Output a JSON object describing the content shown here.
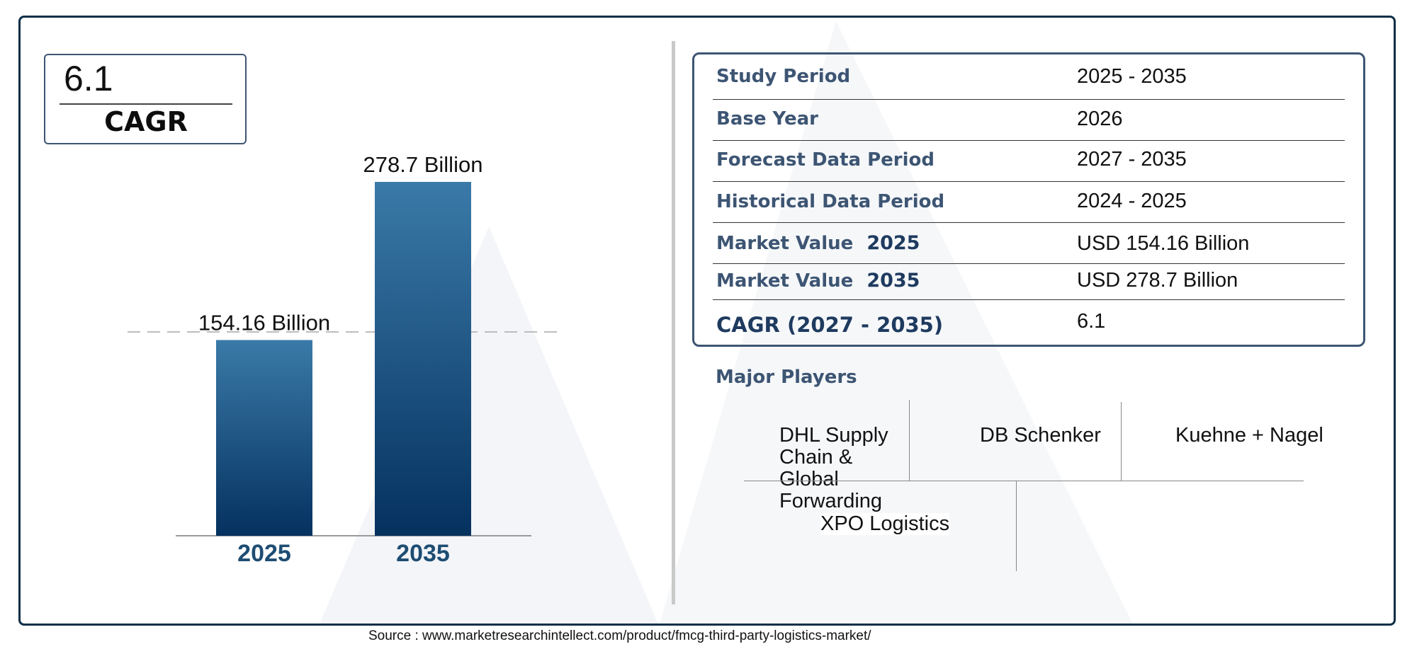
{
  "cagr_box": {
    "value": "6.1",
    "label": "CAGR"
  },
  "chart_data": {
    "type": "bar",
    "categories": [
      "2025",
      "2035"
    ],
    "values": [
      154.16,
      278.7
    ],
    "data_labels": [
      "154.16 Billion",
      "278.7 Billion"
    ],
    "unit": "Billion",
    "title": "",
    "xlabel": "",
    "ylabel": "",
    "ylim": [
      0,
      278.7
    ],
    "grid": false,
    "colors": {
      "bar_top": "#3a7aa8",
      "bar_bottom": "#05315f",
      "tick_label": "#1e4d73"
    }
  },
  "info_table": [
    {
      "label": "Study Period",
      "value": "2025 - 2035"
    },
    {
      "label": "Base Year",
      "value": "2026"
    },
    {
      "label": "Forecast Data Period",
      "value": "2027 - 2035"
    },
    {
      "label": "Historical Data Period",
      "value": "2024 - 2025"
    },
    {
      "label": "Market Value",
      "year": "2025",
      "value": "USD 154.16 Billion"
    },
    {
      "label": "Market Value",
      "year": "2035",
      "value": "USD 278.7 Billion"
    },
    {
      "label": "CAGR (2027 - 2035)",
      "value": "6.1"
    }
  ],
  "major_players": {
    "title": "Major Players",
    "items": [
      "DHL Supply Chain & Global Forwarding",
      "DB Schenker",
      "Kuehne + Nagel",
      "XPO Logistics"
    ]
  },
  "source": "Source : www.marketresearchintellect.com/product/fmcg-third-party-logistics-market/"
}
